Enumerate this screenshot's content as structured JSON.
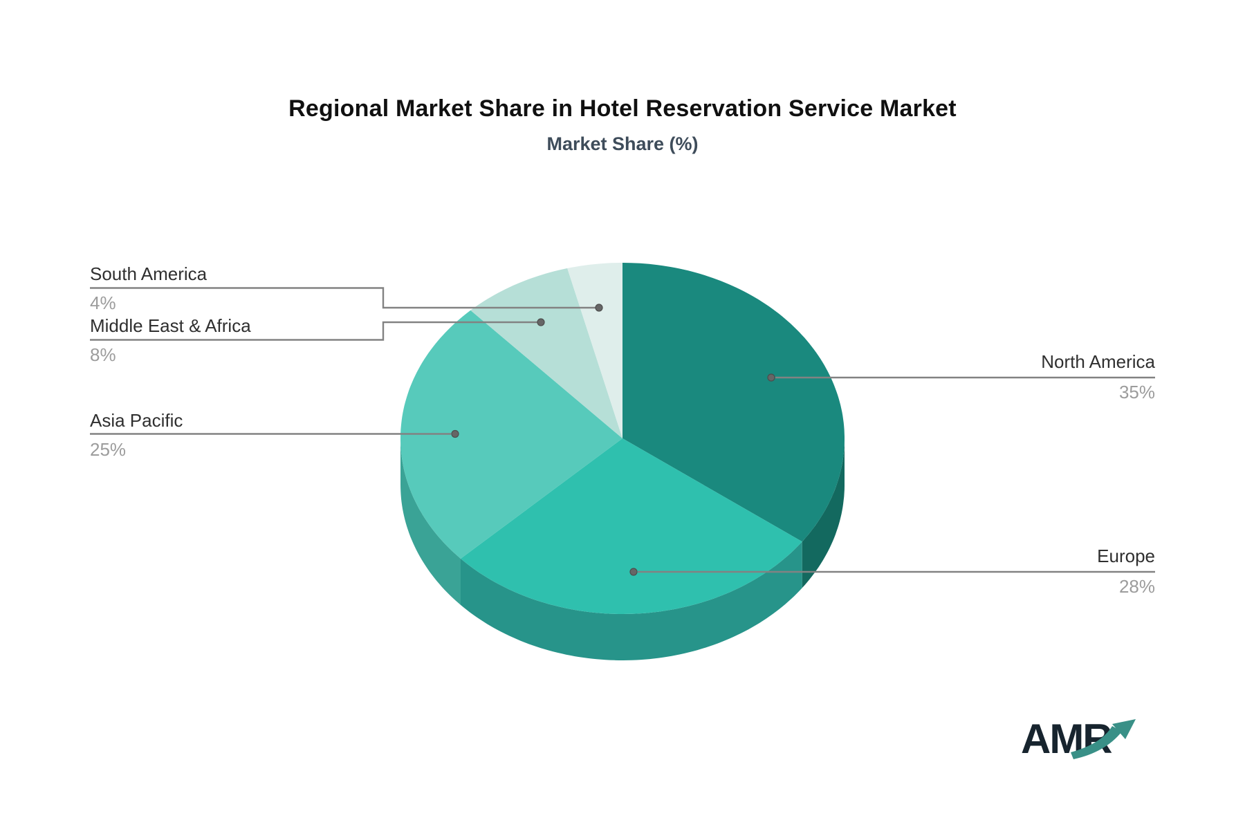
{
  "header": {
    "title": "Regional Market Share in Hotel Reservation Service Market",
    "subtitle": "Market Share (%)"
  },
  "chart_data": {
    "type": "pie",
    "style": "3d-pie",
    "title": "Regional Market Share in Hotel Reservation Service Market",
    "subtitle": "Market Share (%)",
    "unit": "%",
    "start_angle": "12-oclock",
    "direction": "clockwise",
    "legend": "none",
    "segments": [
      {
        "label": "North America",
        "value": 35,
        "display": "35%",
        "color": "#1a897e",
        "side_color": "#13695f"
      },
      {
        "label": "Europe",
        "value": 28,
        "display": "28%",
        "color": "#2fc0ae",
        "side_color": "#27948a"
      },
      {
        "label": "Asia Pacific",
        "value": 25,
        "display": "25%",
        "color": "#57cabb",
        "side_color": "#3aa396"
      },
      {
        "label": "Middle East & Africa",
        "value": 8,
        "display": "8%",
        "color": "#b6dfd7",
        "side_color": "#9ccac1"
      },
      {
        "label": "South America",
        "value": 4,
        "display": "4%",
        "color": "#dfeeeb",
        "side_color": "#c5d9d5"
      }
    ],
    "leader_line_color": "#828282",
    "leader_dot_color": "#666666",
    "label_name_color": "#2f2f2f",
    "label_value_color": "#9c9c9c"
  },
  "logo": {
    "text": "AMR",
    "text_color": "#17242e",
    "arrow_color": "#399087"
  }
}
